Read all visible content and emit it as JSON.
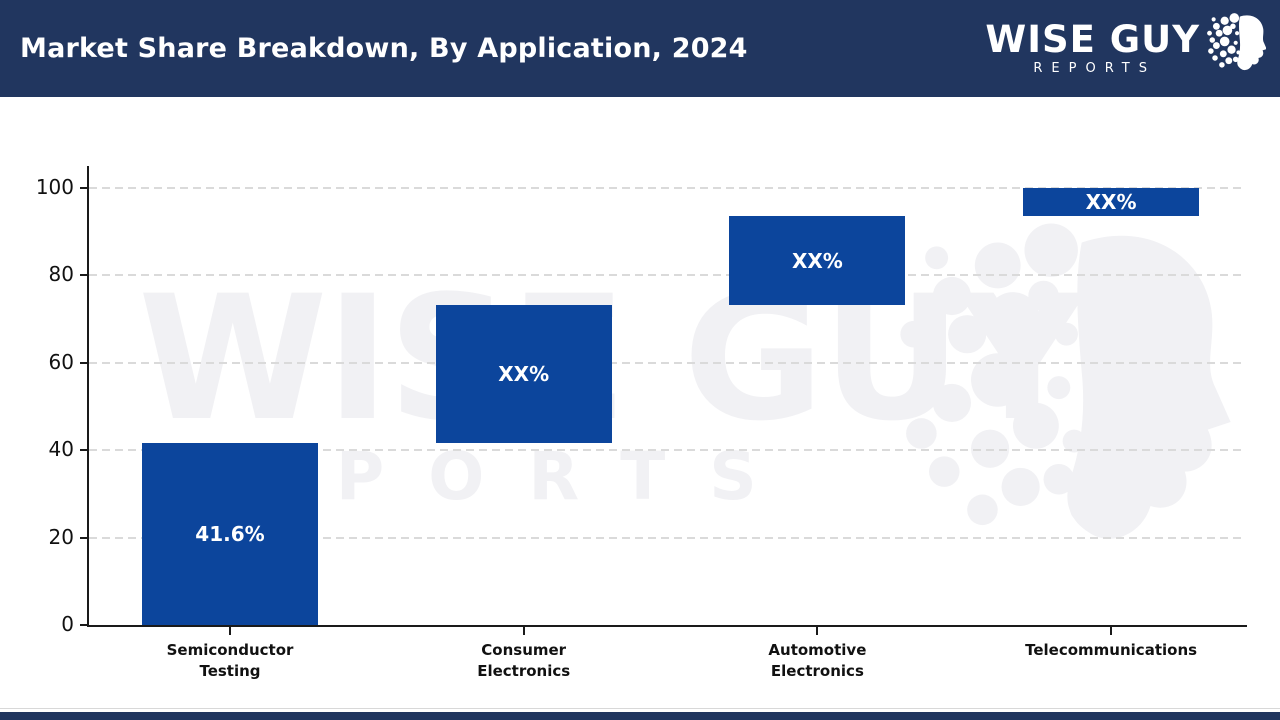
{
  "header": {
    "title": "Market Share Breakdown, By Application, 2024",
    "logo": {
      "line1": "WISE GUY",
      "line2": "REPORTS"
    }
  },
  "watermark": {
    "line1": "WISE GUY",
    "line2": "REPORTS"
  },
  "colors": {
    "header_bg": "#21365f",
    "bar_blue": "#0c459c",
    "grid_gray": "#dadada",
    "axis_black": "#1a1a1a",
    "watermark_gray": "#f1f1f4",
    "label_white": "#ffffff"
  },
  "chart_data": {
    "type": "bar",
    "subtype": "waterfall",
    "title": "Market Share Breakdown, By Application, 2024",
    "categories": [
      "Semiconductor Testing",
      "Consumer Electronics",
      "Automotive Electronics",
      "Telecommunications"
    ],
    "bars": [
      {
        "category_lines": [
          "Semiconductor",
          "Testing"
        ],
        "start": 0,
        "end": 41.6,
        "label": "41.6%"
      },
      {
        "category_lines": [
          "Consumer",
          "Electronics"
        ],
        "start": 41.6,
        "end": 73.1,
        "label": "XX%"
      },
      {
        "category_lines": [
          "Automotive",
          "Electronics"
        ],
        "start": 73.1,
        "end": 93.5,
        "label": "XX%"
      },
      {
        "category_lines": [
          "Telecommunications"
        ],
        "start": 93.5,
        "end": 100,
        "label": "XX%"
      }
    ],
    "y_axis": {
      "ticks": [
        0,
        20,
        40,
        60,
        80,
        100
      ],
      "range": [
        0,
        104
      ]
    },
    "grid": "dashed horizontal",
    "legend": "none",
    "bar_color": "#0c459c",
    "value_label_color": "#ffffff"
  }
}
